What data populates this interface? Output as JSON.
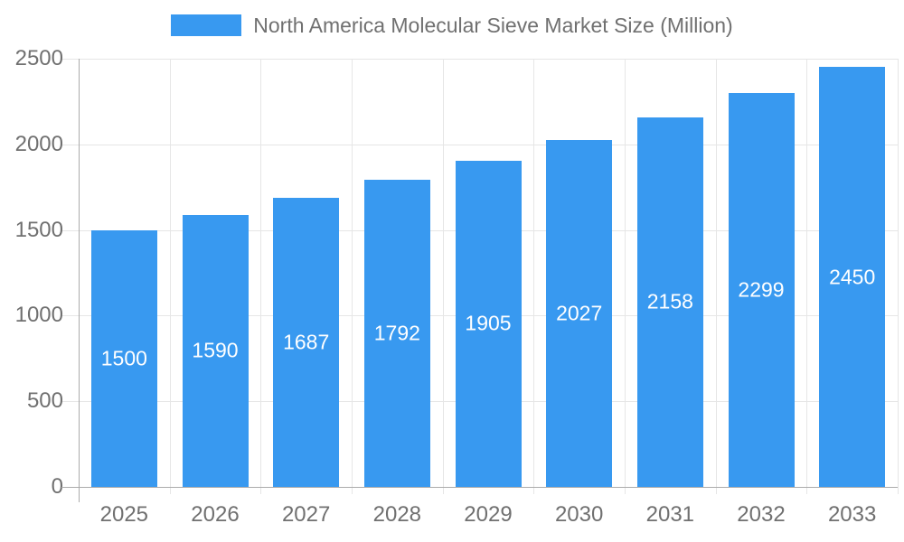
{
  "chart_data": {
    "type": "bar",
    "title": "North America Molecular Sieve Market Size (Million)",
    "legend": [
      "North America Molecular Sieve Market Size (Million)"
    ],
    "legend_position": "top",
    "categories": [
      "2025",
      "2026",
      "2027",
      "2028",
      "2029",
      "2030",
      "2031",
      "2032",
      "2033"
    ],
    "values": [
      1500,
      1590,
      1687,
      1792,
      1905,
      2027,
      2158,
      2299,
      2450
    ],
    "value_labels": [
      "1500",
      "1590",
      "1687",
      "1792",
      "1905",
      "2027",
      "2158",
      "2299",
      "2450"
    ],
    "xlabel": "",
    "ylabel": "",
    "ylim": [
      0,
      2500
    ],
    "yticks": [
      0,
      500,
      1000,
      1500,
      2000,
      2500
    ],
    "grid": true,
    "colors": {
      "bar": "#3899F0",
      "value_label": "#FFFFFF",
      "grid_line": "#E6E6E6",
      "axis_line": "#ABABAB",
      "tick_label": "#707070",
      "legend_text": "#707070",
      "background": "#FFFFFF"
    }
  }
}
